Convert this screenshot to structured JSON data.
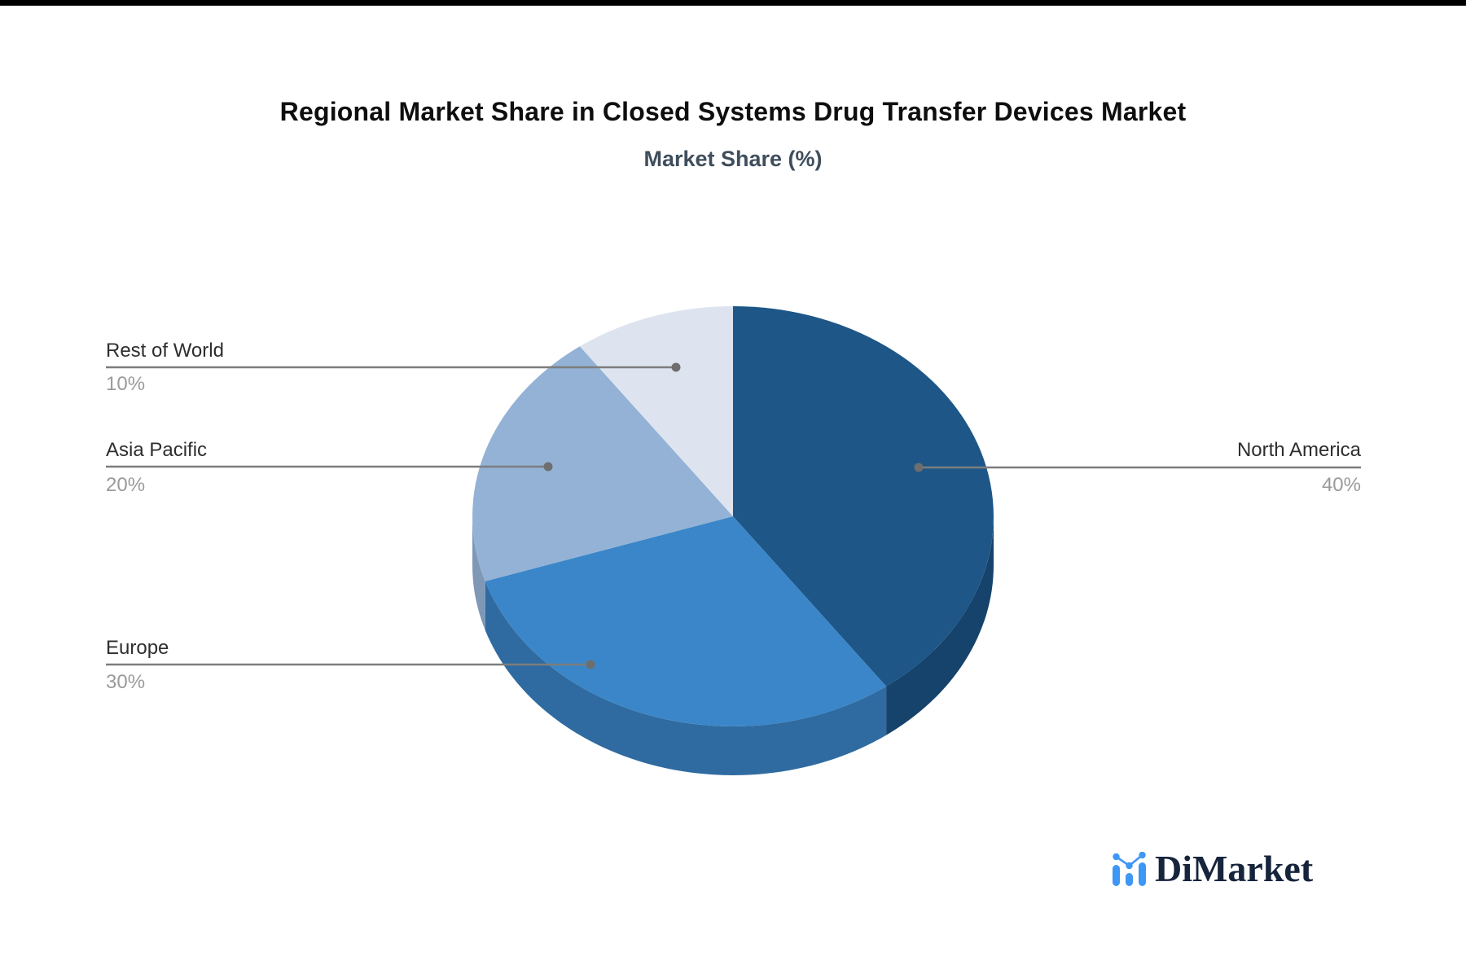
{
  "header": {
    "title": "Regional Market Share in Closed Systems Drug Transfer Devices Market",
    "subtitle": "Market Share (%)"
  },
  "chart_data": {
    "type": "pie",
    "style": "3d",
    "title": "Regional Market Share in Closed Systems Drug Transfer Devices Market",
    "subtitle": "Market Share (%)",
    "unit": "%",
    "start_angle_deg": 0,
    "direction": "clockwise",
    "slices": [
      {
        "label": "North America",
        "value": 40,
        "pct_label": "40%",
        "color": "#1d5687",
        "rim_color": "#16436b"
      },
      {
        "label": "Europe",
        "value": 30,
        "pct_label": "30%",
        "color": "#3a86c8",
        "rim_color": "#2f6ba0"
      },
      {
        "label": "Asia Pacific",
        "value": 20,
        "pct_label": "20%",
        "color": "#93b2d6",
        "rim_color": "#7e98b6"
      },
      {
        "label": "Rest of World",
        "value": 10,
        "pct_label": "10%",
        "color": "#dde4ef",
        "rim_color": "#c7d1e0"
      }
    ],
    "legend_position": "callout-labels",
    "leader_line_color": "#7d7d7d",
    "leader_dot_color": "#6e6e6e"
  },
  "callouts": {
    "rest_of_world": {
      "label": "Rest of World",
      "pct": "10%"
    },
    "asia_pacific": {
      "label": "Asia Pacific",
      "pct": "20%"
    },
    "europe": {
      "label": "Europe",
      "pct": "30%"
    },
    "north_america": {
      "label": "North America",
      "pct": "40%"
    }
  },
  "logo": {
    "name": "DiMarket",
    "icon": "mini-bar-chart-icon",
    "icon_color": "#3e97f4",
    "text_color": "#16243c"
  }
}
